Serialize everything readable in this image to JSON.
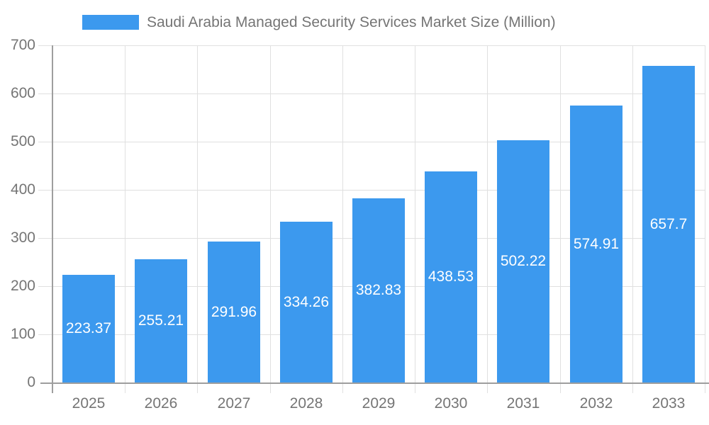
{
  "legend": {
    "label": "Saudi Arabia Managed Security Services Market Size (Million)",
    "swatch_color": "#3C99EE"
  },
  "colors": {
    "bar": "#3C99EE",
    "axis": "#9E9E9E",
    "grid": "#E0E0E0",
    "tick_text": "#757575",
    "bar_label_text": "#FFFFFF",
    "background": "#FFFFFF"
  },
  "chart_data": {
    "type": "bar",
    "title": "Saudi Arabia Managed Security Services Market Size (Million)",
    "categories": [
      "2025",
      "2026",
      "2027",
      "2028",
      "2029",
      "2030",
      "2031",
      "2032",
      "2033"
    ],
    "values": [
      223.37,
      255.21,
      291.96,
      334.26,
      382.83,
      438.53,
      502.22,
      574.91,
      657.7
    ],
    "value_labels": [
      "223.37",
      "255.21",
      "291.96",
      "334.26",
      "382.83",
      "438.53",
      "502.22",
      "574.91",
      "657.7"
    ],
    "xlabel": "",
    "ylabel": "",
    "ylim": [
      0,
      700
    ],
    "y_ticks": [
      0,
      100,
      200,
      300,
      400,
      500,
      600,
      700
    ],
    "grid": true,
    "legend_position": "top",
    "value_label_position": "center-inside",
    "value_label_color": "#FFFFFF"
  }
}
